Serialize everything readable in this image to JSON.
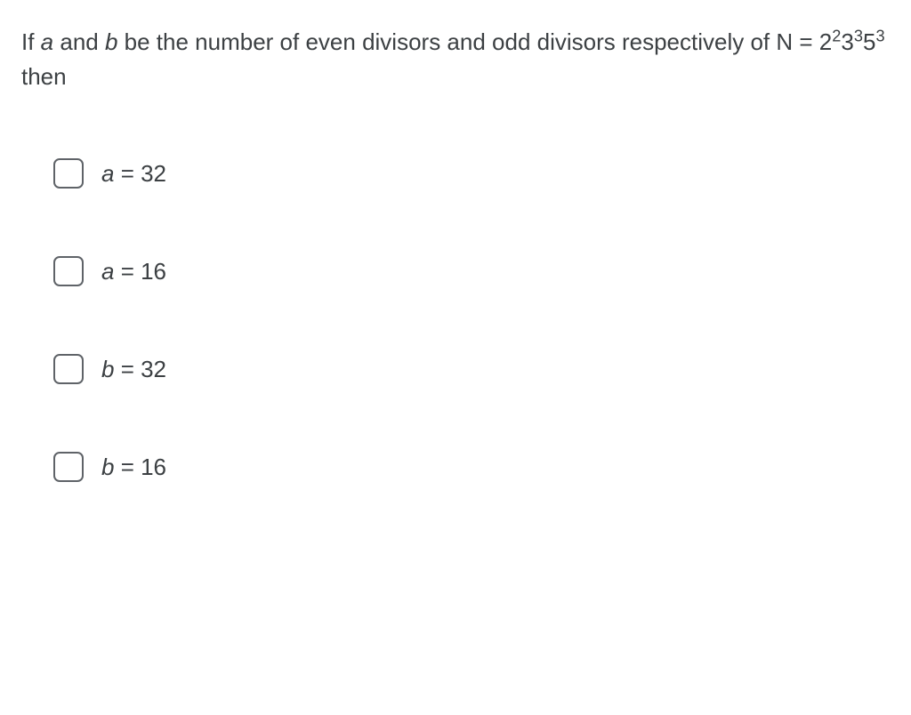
{
  "question": {
    "prefix": "If ",
    "var_a": "a",
    "mid1": " and ",
    "var_b": "b",
    "mid2": " be the number of even divisors and odd divisors respectively of N = 2",
    "exp1": "2",
    "base2": "3",
    "exp2": "3",
    "base3": "5",
    "exp3": "3",
    "suffix": " then"
  },
  "options": [
    {
      "var": "a",
      "eq": " = 32"
    },
    {
      "var": "a",
      "eq": " = 16"
    },
    {
      "var": "b",
      "eq": " = 32"
    },
    {
      "var": "b",
      "eq": " = 16"
    }
  ],
  "styling": {
    "text_color": "#3c4043",
    "checkbox_border_color": "#5f6368",
    "background_color": "#ffffff",
    "question_fontsize": 26,
    "option_fontsize": 26,
    "checkbox_size": 34,
    "checkbox_radius": 7
  }
}
